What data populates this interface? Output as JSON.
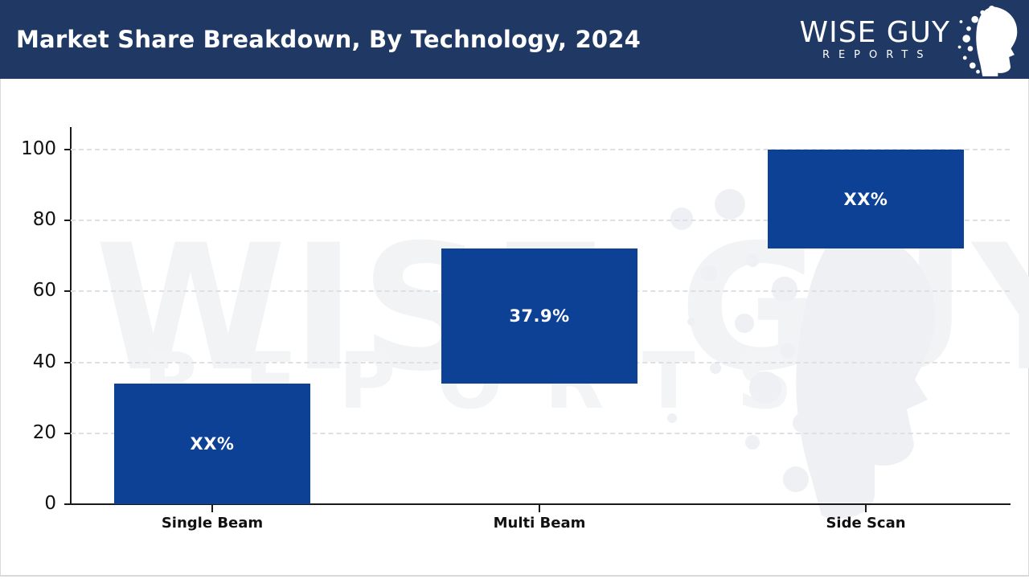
{
  "header": {
    "title": "Market Share Breakdown, By Technology, 2024",
    "logo": {
      "name": "WISE GUY",
      "sub": "REPORTS"
    }
  },
  "watermark": {
    "line1": "WISE GUY",
    "line2": "REPORTS"
  },
  "chart_data": {
    "type": "bar",
    "variant": "floating-waterfall",
    "title": "Market Share Breakdown, By Technology, 2024",
    "categories": [
      "Single Beam",
      "Multi Beam",
      "Side Scan"
    ],
    "segments": [
      {
        "category": "Single Beam",
        "start": 0,
        "end": 34.1,
        "label": "XX%"
      },
      {
        "category": "Multi Beam",
        "start": 34.1,
        "end": 72,
        "label": "37.9%"
      },
      {
        "category": "Side Scan",
        "start": 72,
        "end": 100,
        "label": "XX%"
      }
    ],
    "xlabel": "",
    "ylabel": "",
    "ylim": [
      0,
      106
    ],
    "yticks": [
      0,
      20,
      40,
      60,
      80,
      100
    ],
    "grid": "horizontal-dashed",
    "legend": "none",
    "bar_color": "#0d4196",
    "label_color": "#ffffff"
  }
}
